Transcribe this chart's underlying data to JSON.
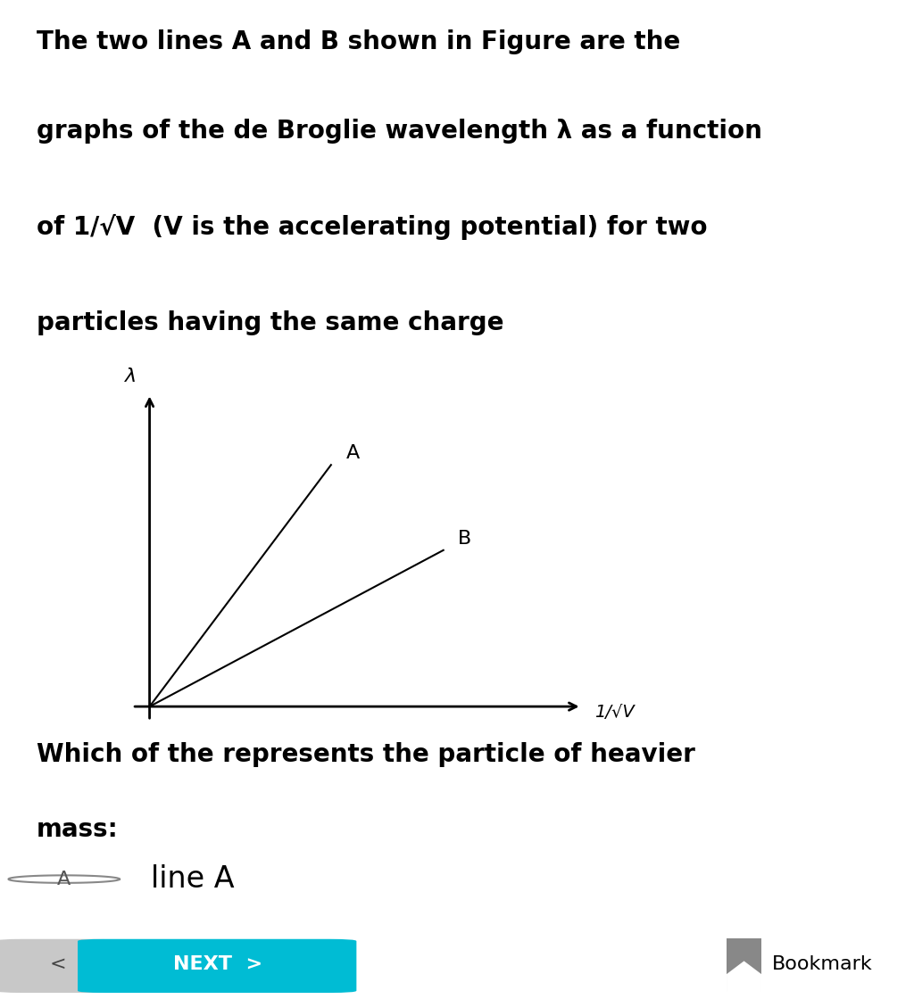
{
  "bg_color": "#ffffff",
  "title_lines": [
    "The two lines A and B shown in Figure are the",
    "graphs of the de Broglie wavelength λ as a function",
    "of 1/√V  (V is the accelerating potential) for two",
    "particles having the same charge"
  ],
  "question_lines": [
    "Which of the represents the particle of heavier",
    "mass:"
  ],
  "answer_label": "A",
  "answer_text": "line A",
  "line_A": {
    "x": [
      0,
      0.42
    ],
    "y": [
      0,
      0.85
    ],
    "label": "A",
    "color": "#000000"
  },
  "line_B": {
    "x": [
      0,
      0.68
    ],
    "y": [
      0,
      0.55
    ],
    "label": "B",
    "color": "#000000"
  },
  "x_axis_label": "1/√V",
  "y_axis_label": "λ",
  "next_button_color": "#00bcd4",
  "next_button_text": "NEXT  >",
  "back_button_text": "<",
  "bookmark_text": "Bookmark",
  "title_fontsize": 20,
  "question_fontsize": 20,
  "answer_fontsize": 24
}
